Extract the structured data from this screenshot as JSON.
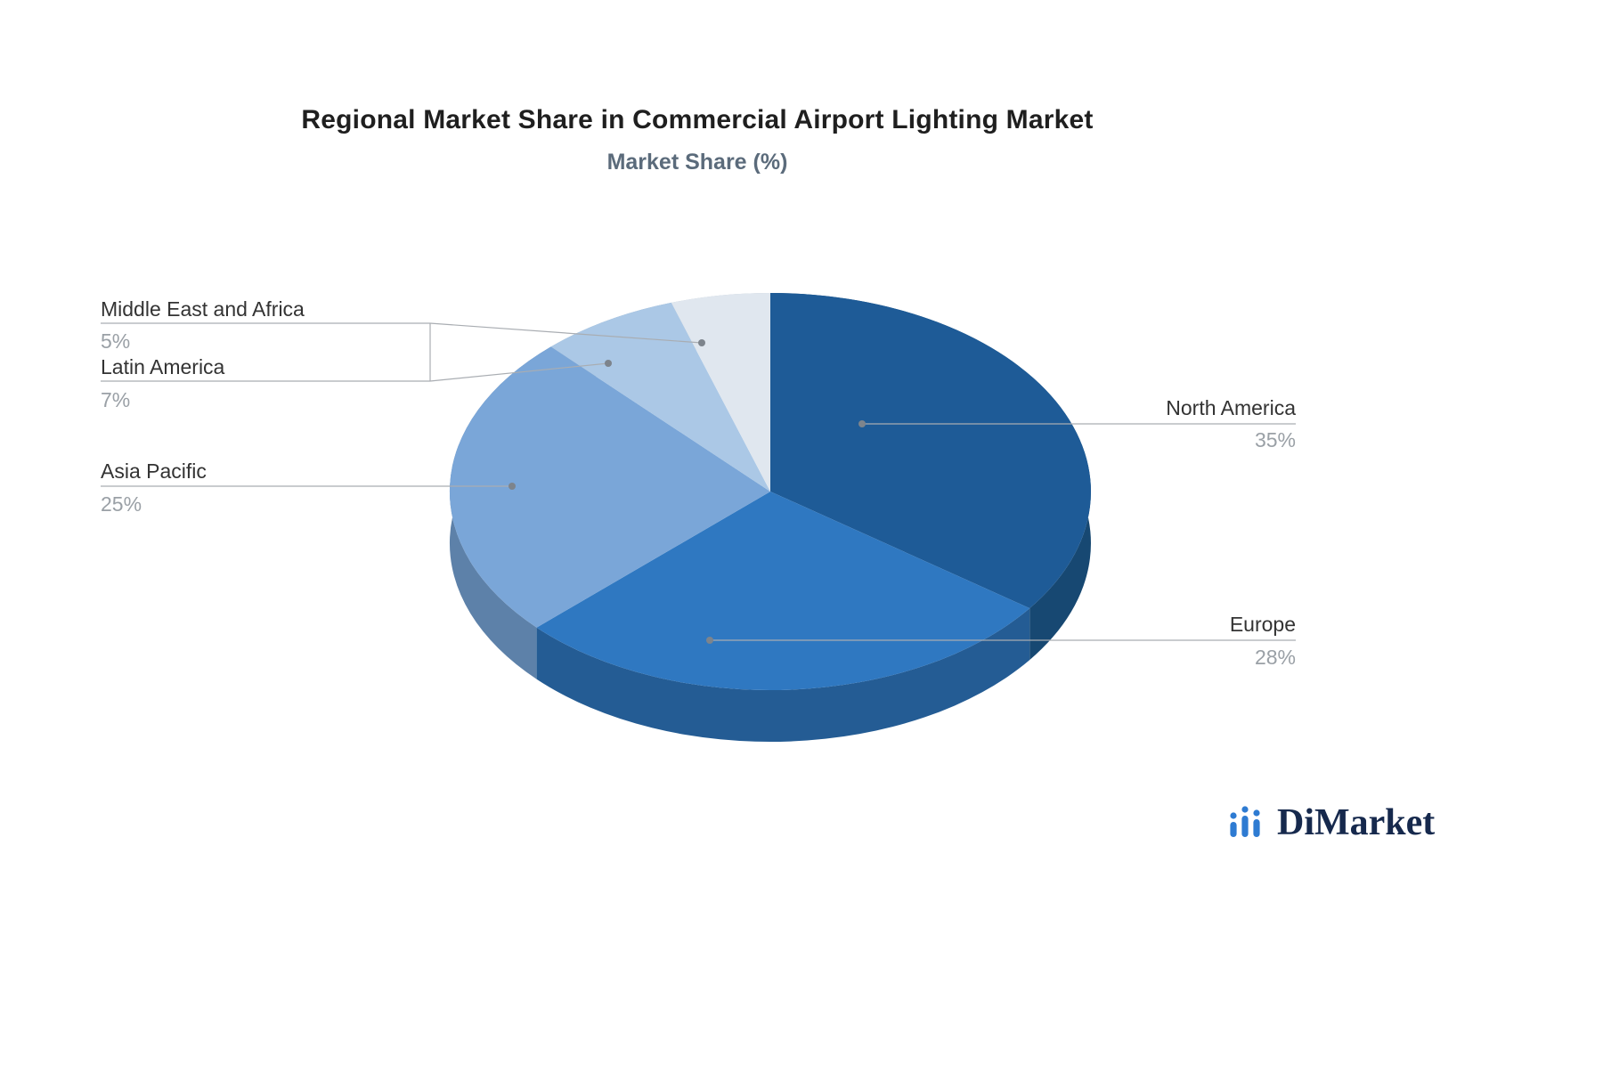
{
  "logo": {
    "text": "DiMarket"
  },
  "chart_data": {
    "type": "pie",
    "title": "Regional Market Share in Commercial Airport Lighting Market",
    "subtitle": "Market Share (%)",
    "unit": "%",
    "direction": "clockwise",
    "start_angle_deg": 0,
    "effect": "3d",
    "legend_position": "callout-labels",
    "slices": [
      {
        "label": "North America",
        "value": 35,
        "value_label": "35%",
        "color": "#1e5b97",
        "side_color": "#174872"
      },
      {
        "label": "Europe",
        "value": 28,
        "value_label": "28%",
        "color": "#2f78c1",
        "side_color": "#245c94"
      },
      {
        "label": "Asia Pacific",
        "value": 25,
        "value_label": "25%",
        "color": "#7aa6d8",
        "side_color": "#5d81a9"
      },
      {
        "label": "Latin America",
        "value": 7,
        "value_label": "7%",
        "color": "#abc8e6",
        "side_color": "#87a1ba"
      },
      {
        "label": "Middle East and Africa",
        "value": 5,
        "value_label": "5%",
        "color": "#e0e7ef",
        "side_color": "#b6c0ca"
      }
    ]
  }
}
